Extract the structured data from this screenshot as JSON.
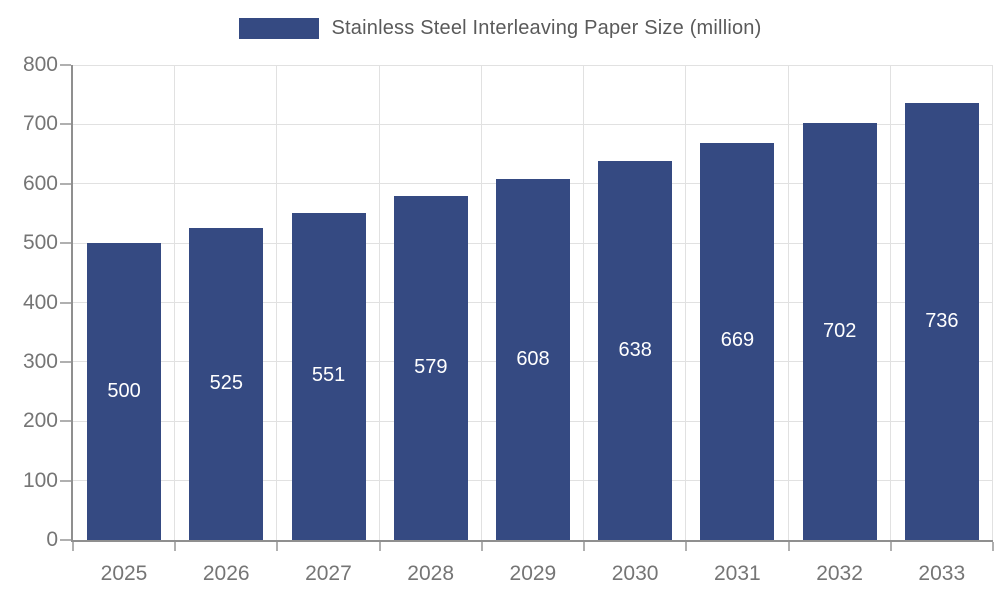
{
  "legend": {
    "label": "Stainless Steel Interleaving Paper Size (million)"
  },
  "chart_data": {
    "type": "bar",
    "title": "",
    "xlabel": "",
    "ylabel": "",
    "categories": [
      "2025",
      "2026",
      "2027",
      "2028",
      "2029",
      "2030",
      "2031",
      "2032",
      "2033"
    ],
    "series": [
      {
        "name": "Stainless Steel Interleaving Paper Size (million)",
        "values": [
          500,
          525,
          551,
          579,
          608,
          638,
          669,
          702,
          736
        ]
      }
    ],
    "value_labels_shown": true,
    "value_label_position": "inside-center",
    "ylim": [
      0,
      800
    ],
    "yticks": [
      0,
      100,
      200,
      300,
      400,
      500,
      600,
      700,
      800
    ],
    "grid": true,
    "legend_position": "top-center",
    "colors": {
      "bar": "#354a82",
      "value_label": "#ffffff",
      "gridline": "#e1e1e1",
      "axis_line": "#8f8f8f",
      "tick": "#b0b0b0",
      "axis_label": "#757575",
      "legend_text": "#5a5a5a",
      "background": "#ffffff"
    }
  }
}
